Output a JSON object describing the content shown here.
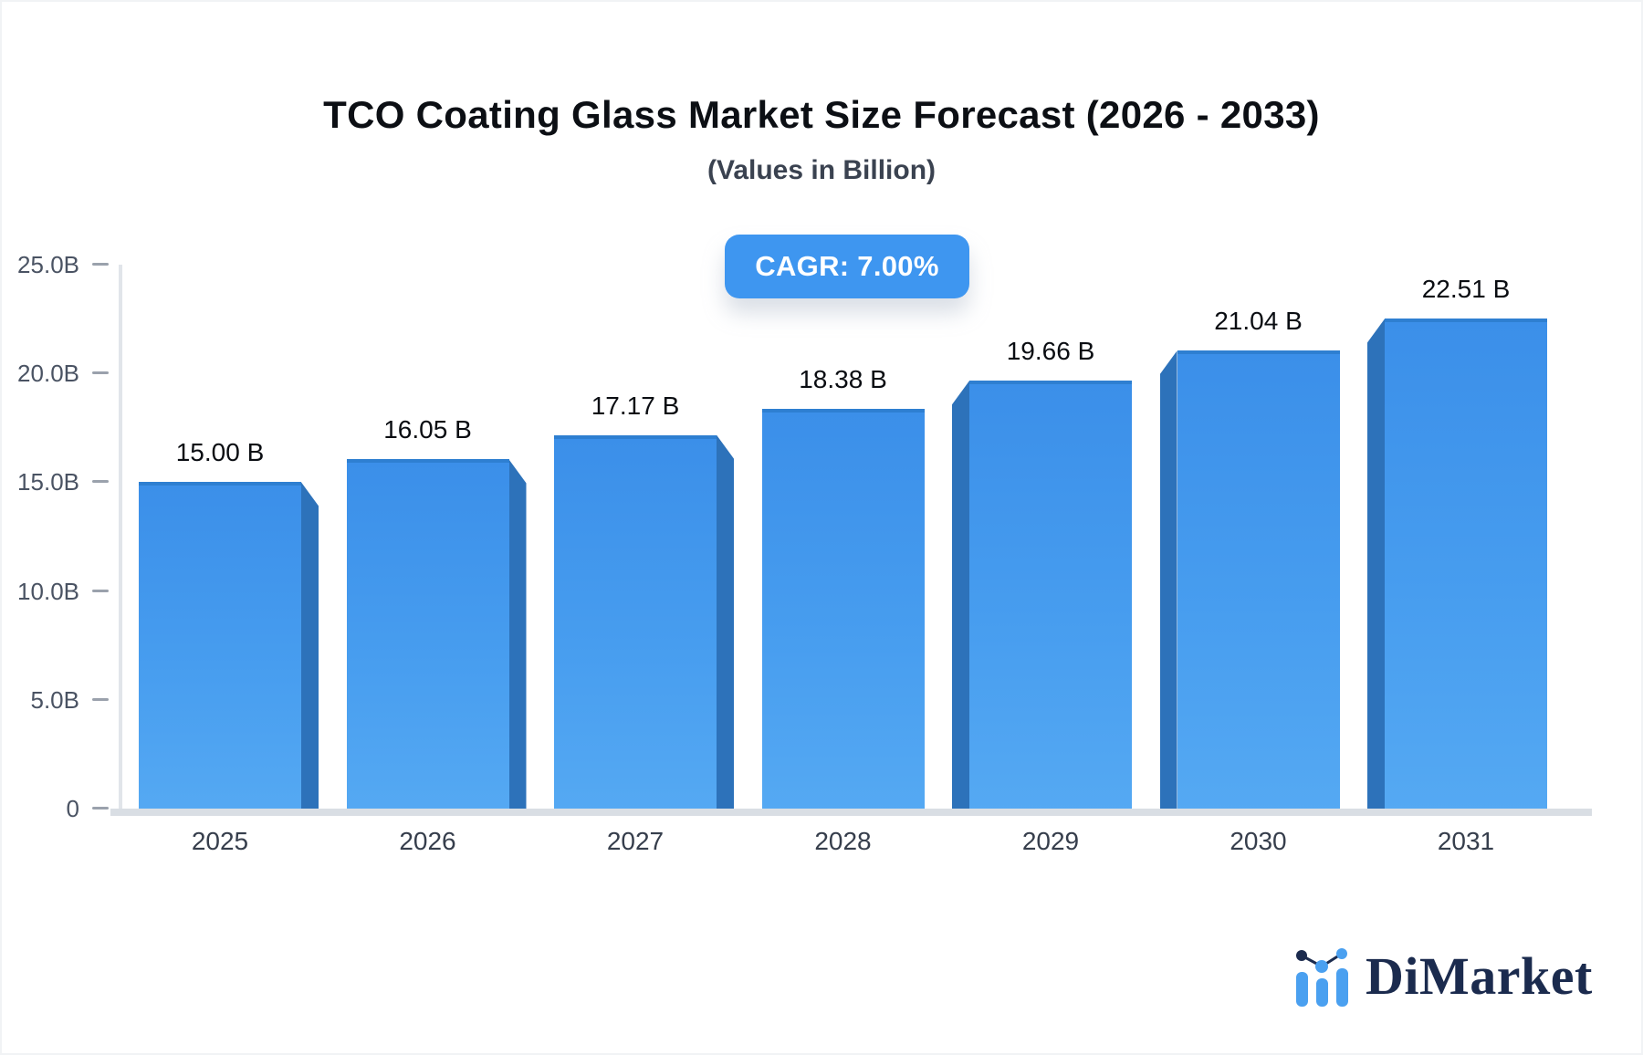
{
  "header": {
    "title": "TCO Coating Glass Market Size Forecast (2026 - 2033)",
    "subtitle": "(Values in Billion)"
  },
  "badge": {
    "label": "CAGR: 7.00%"
  },
  "chart_data": {
    "type": "bar",
    "title": "TCO Coating Glass Market Size Forecast (2026 - 2033)",
    "subtitle": "(Values in Billion)",
    "categories": [
      "2025",
      "2026",
      "2027",
      "2028",
      "2029",
      "2030",
      "2031"
    ],
    "values": [
      15.0,
      16.05,
      17.17,
      18.38,
      19.66,
      21.04,
      22.51
    ],
    "value_labels": [
      "15.00 B",
      "16.05 B",
      "17.17 B",
      "18.38 B",
      "19.66 B",
      "21.04 B",
      "22.51 B"
    ],
    "annotation": "CAGR: 7.00%",
    "xlabel": "",
    "ylabel": "",
    "ylim": [
      0,
      25
    ],
    "ytick_values": [
      25,
      20,
      15,
      10,
      5,
      0
    ],
    "ytick_labels": [
      "25.0B",
      "20.0B",
      "15.0B",
      "10.0B",
      "5.0B",
      "0"
    ],
    "grid": false,
    "legend": false,
    "bar_style": "3d-beveled"
  },
  "footer": {
    "brand": "DiMarket"
  },
  "icons": {
    "brand_logo_icon": "mini-bar-chart-with-dots"
  },
  "colors": {
    "accent": "#3E96F0",
    "bar_top": "#3B8FE9",
    "bar_mid": "#479DEF",
    "bar_bottom": "#55A9F3",
    "bar_cap": "#2E7FD1",
    "bar_side": "#2D72BA",
    "axis": "#E1E5EA",
    "baseline": "#D9DEE4",
    "tick": "#9AA1AC",
    "ylabel": "#4A5363",
    "xlabel": "#363E4C",
    "value_label": "#0A0D12",
    "title": "#0C0F14",
    "subtitle": "#3A4250",
    "brand_navy": "#1B2B4E",
    "brand_blue": "#4AA0F0"
  }
}
